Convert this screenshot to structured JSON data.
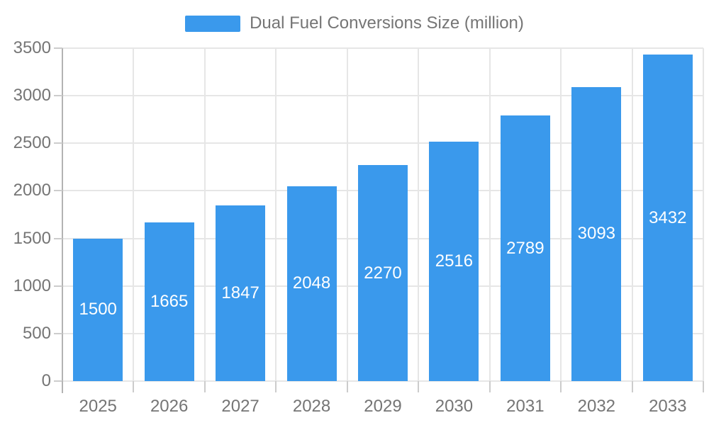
{
  "legend": {
    "label": "Dual Fuel Conversions Size (million)"
  },
  "chart_data": {
    "type": "bar",
    "title": "",
    "xlabel": "",
    "ylabel": "",
    "categories": [
      "2025",
      "2026",
      "2027",
      "2028",
      "2029",
      "2030",
      "2031",
      "2032",
      "2033"
    ],
    "series": [
      {
        "name": "Dual Fuel Conversions Size (million)",
        "values": [
          1500,
          1665,
          1847,
          2048,
          2270,
          2516,
          2789,
          3093,
          3432
        ]
      }
    ],
    "bar_labels": [
      "1500",
      "1665",
      "1847",
      "2048",
      "2270",
      "2516",
      "2789",
      "3093",
      "3432"
    ],
    "ylim": [
      0,
      3500
    ],
    "ytick_step": 500,
    "yticks": [
      "0",
      "500",
      "1000",
      "1500",
      "2000",
      "2500",
      "3000",
      "3500"
    ],
    "grid": true,
    "legend_position": "top",
    "colors": {
      "bar": "#3a99ec",
      "bar_label": "#ffffff",
      "grid": "#e6e6e6",
      "axis_line": "#b3b3b3",
      "tick": "#cccccc",
      "text": "#757575",
      "background": "#ffffff"
    }
  }
}
